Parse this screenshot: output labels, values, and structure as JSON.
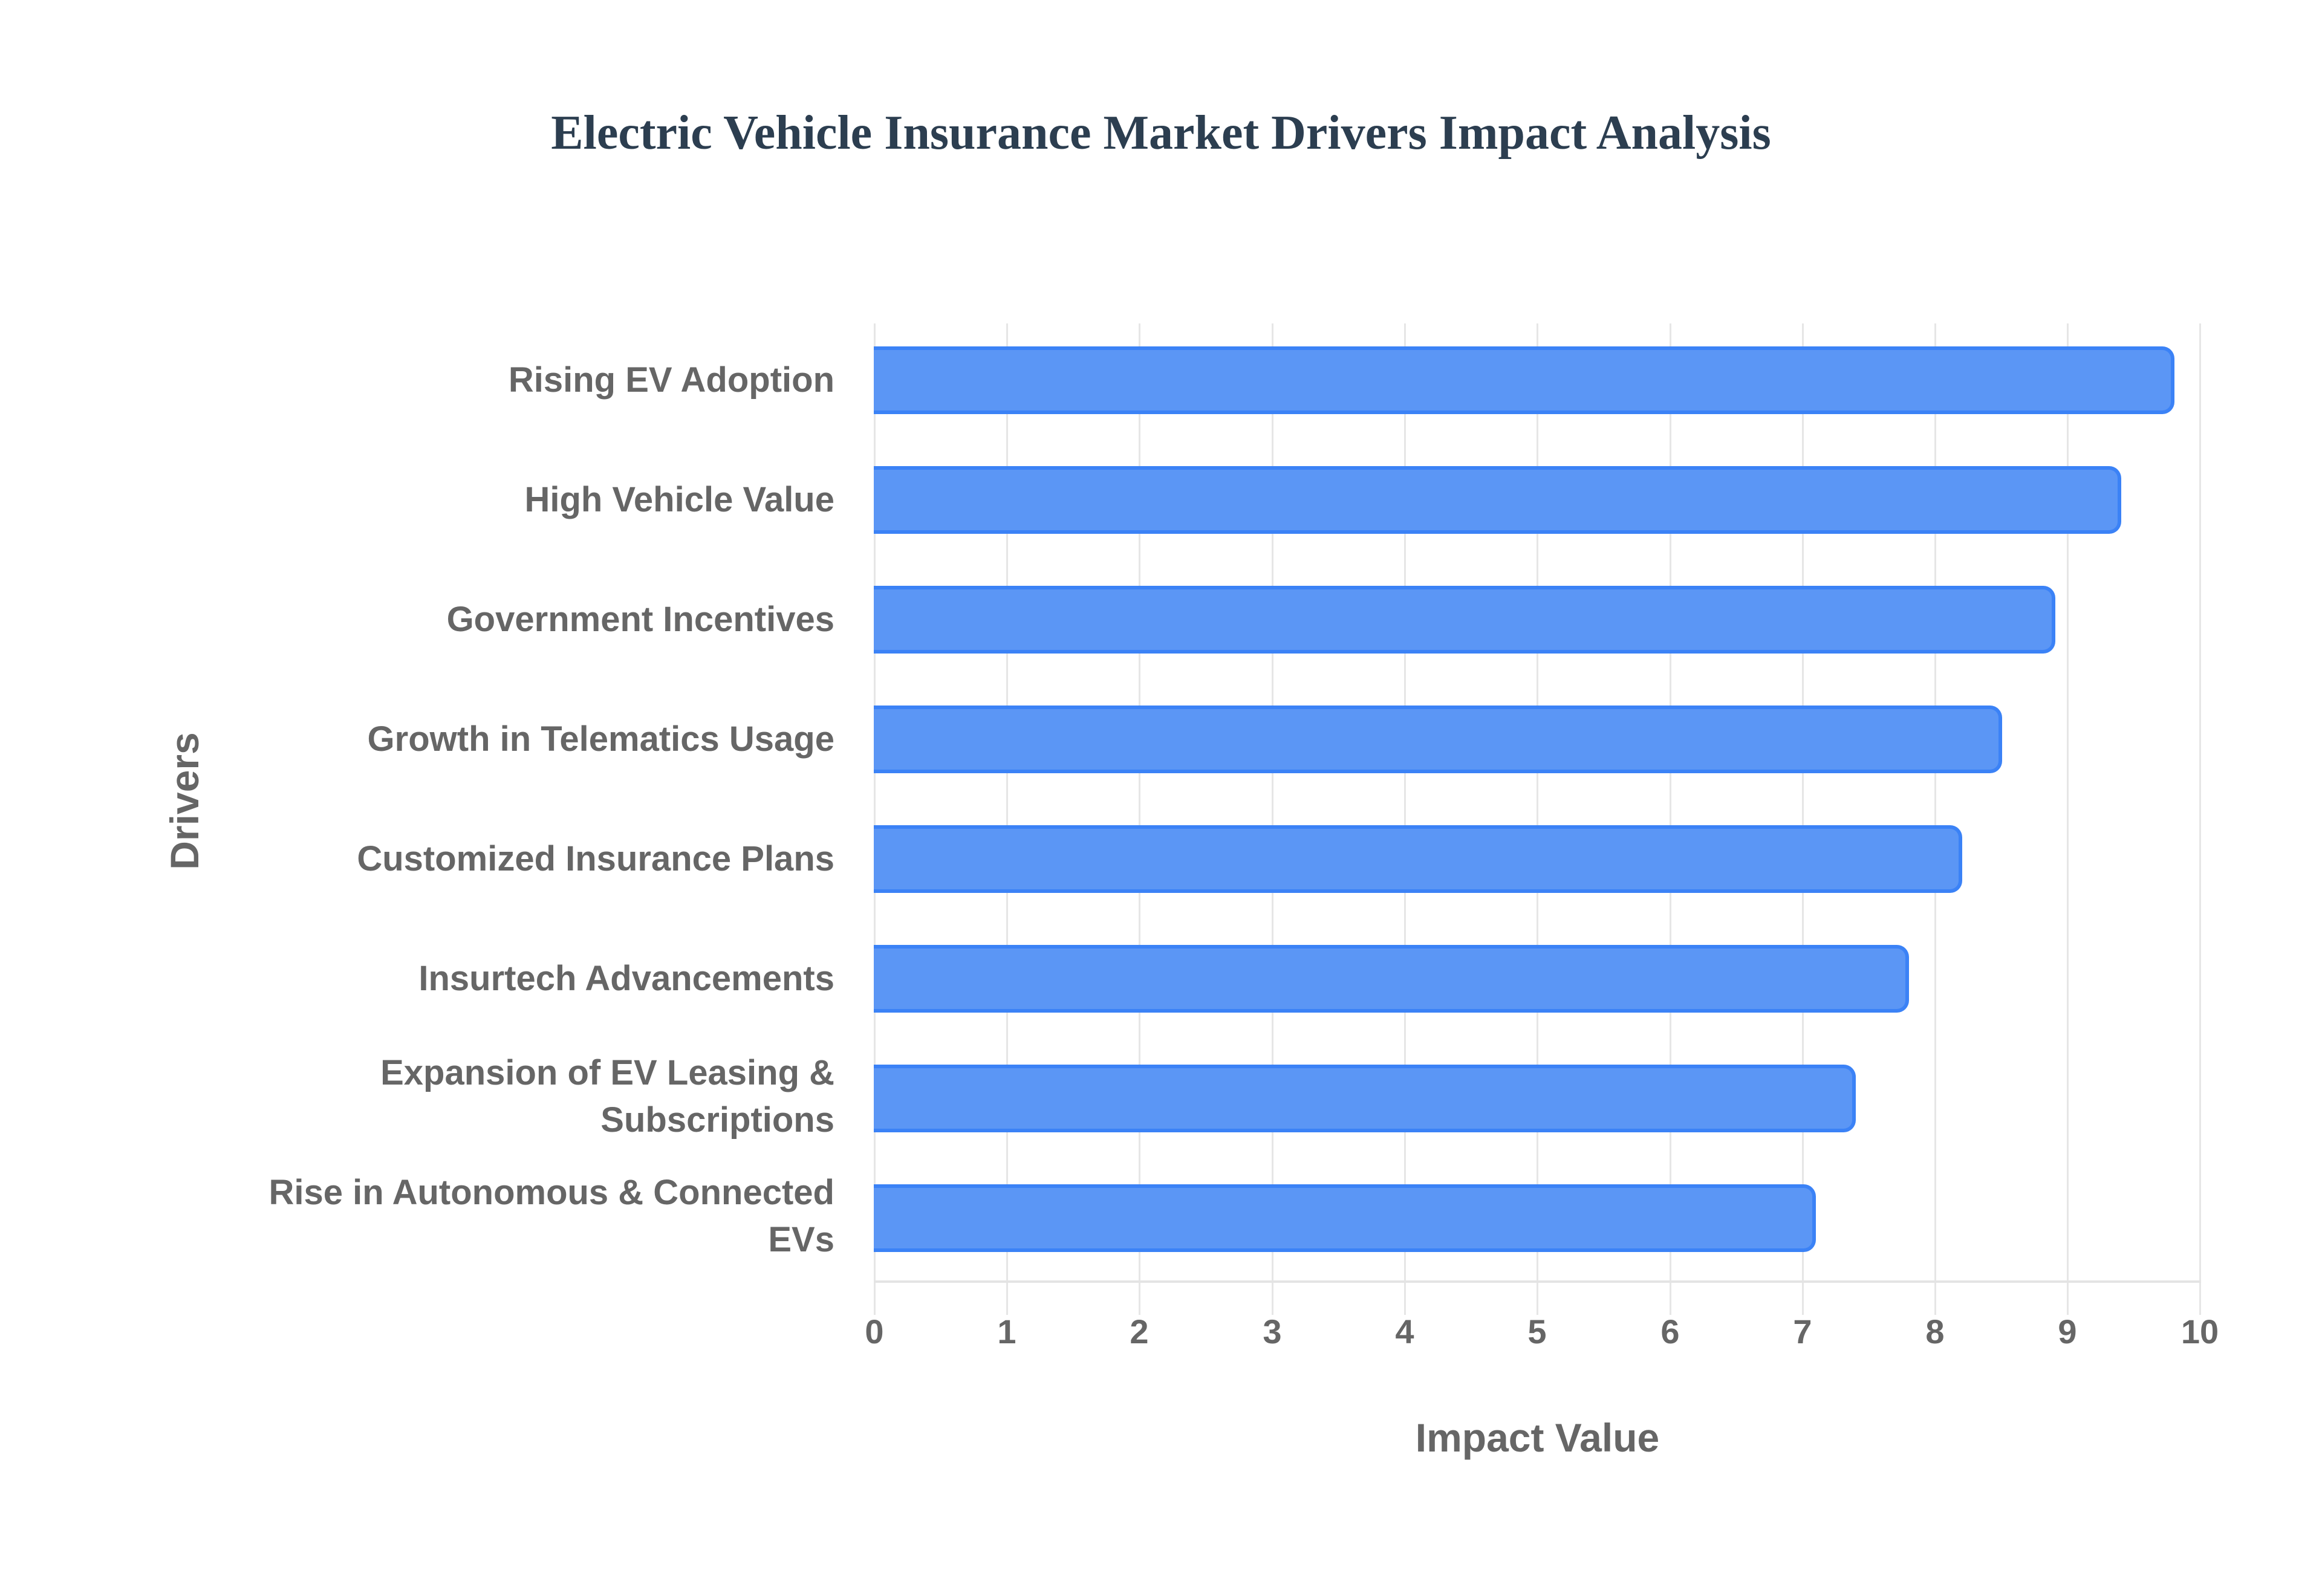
{
  "title": "Electric Vehicle Insurance Market Drivers Impact Analysis",
  "axes": {
    "x_title": "Impact Value",
    "y_title": "Drivers",
    "x_ticks": [
      "0",
      "1",
      "2",
      "3",
      "4",
      "5",
      "6",
      "7",
      "8",
      "9",
      "10"
    ]
  },
  "colors": {
    "bar_fill": "#5b96f5",
    "bar_border": "#3b82f6",
    "title": "#2c3e50",
    "label": "#666666",
    "grid": "#e6e6e6"
  },
  "bars": [
    {
      "label": "Rising EV Adoption",
      "value": 9.8
    },
    {
      "label": "High Vehicle Value",
      "value": 9.4
    },
    {
      "label": "Government Incentives",
      "value": 8.9
    },
    {
      "label": "Growth in Telematics Usage",
      "value": 8.5
    },
    {
      "label": "Customized Insurance Plans",
      "value": 8.2
    },
    {
      "label": "Insurtech Advancements",
      "value": 7.8
    },
    {
      "label": "Expansion of EV Leasing &\nSubscriptions",
      "value": 7.4
    },
    {
      "label": "Rise in Autonomous & Connected\nEVs",
      "value": 7.1
    }
  ],
  "chart_data": {
    "type": "bar",
    "orientation": "horizontal",
    "title": "Electric Vehicle Insurance Market Drivers Impact Analysis",
    "xlabel": "Impact Value",
    "ylabel": "Drivers",
    "categories": [
      "Rising EV Adoption",
      "High Vehicle Value",
      "Government Incentives",
      "Growth in Telematics Usage",
      "Customized Insurance Plans",
      "Insurtech Advancements",
      "Expansion of EV Leasing & Subscriptions",
      "Rise in Autonomous & Connected EVs"
    ],
    "values": [
      9.8,
      9.4,
      8.9,
      8.5,
      8.2,
      7.8,
      7.4,
      7.1
    ],
    "xlim": [
      0,
      10
    ],
    "x_ticks": [
      0,
      1,
      2,
      3,
      4,
      5,
      6,
      7,
      8,
      9,
      10
    ],
    "grid": {
      "x": true,
      "y": false
    },
    "legend": "none"
  }
}
